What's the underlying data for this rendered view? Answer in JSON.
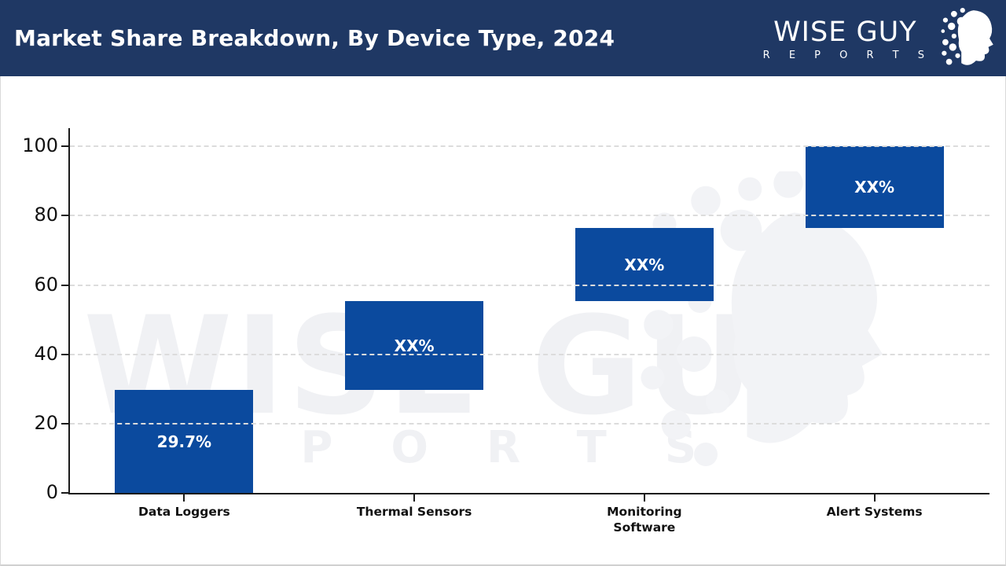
{
  "header": {
    "title": "Market Share Breakdown, By Device Type, 2024",
    "logo": {
      "name": "WISE GUY",
      "subtitle": "R E P O R T S"
    }
  },
  "watermark": {
    "line1": "WISE GUY",
    "line2": "REPORTS"
  },
  "chart_data": {
    "type": "bar",
    "subtype": "floating-segment waterfall of market share",
    "title": "Market Share Breakdown, By Device Type, 2024",
    "categories": [
      "Data Loggers",
      "Thermal Sensors",
      "Monitoring Software",
      "Alert Systems"
    ],
    "categories_display": [
      "Data Loggers",
      "Thermal Sensors",
      "Monitoring\nSoftware",
      "Alert Systems"
    ],
    "segments": [
      {
        "category": "Data Loggers",
        "start": 0,
        "end": 29.7,
        "label": "29.7%"
      },
      {
        "category": "Thermal Sensors",
        "start": 29.7,
        "end": 55.3,
        "label": "XX%"
      },
      {
        "category": "Monitoring Software",
        "start": 55.3,
        "end": 76.4,
        "label": "XX%"
      },
      {
        "category": "Alert Systems",
        "start": 76.4,
        "end": 100,
        "label": "XX%"
      }
    ],
    "ylim": [
      0,
      100
    ],
    "yticks": [
      "0",
      "20",
      "40",
      "60",
      "80",
      "100"
    ],
    "xlabel": "",
    "ylabel": "",
    "grid": "horizontal dashed, drawn over bars",
    "legend": "none",
    "colors": {
      "bar": "#0b4a9e",
      "bar_label": "#ffffff",
      "grid": "#dcdcdc",
      "axis": "#1a1a1a",
      "header_bg": "#1f3864",
      "header_text": "#ffffff",
      "watermark": "#f0f1f4"
    }
  }
}
